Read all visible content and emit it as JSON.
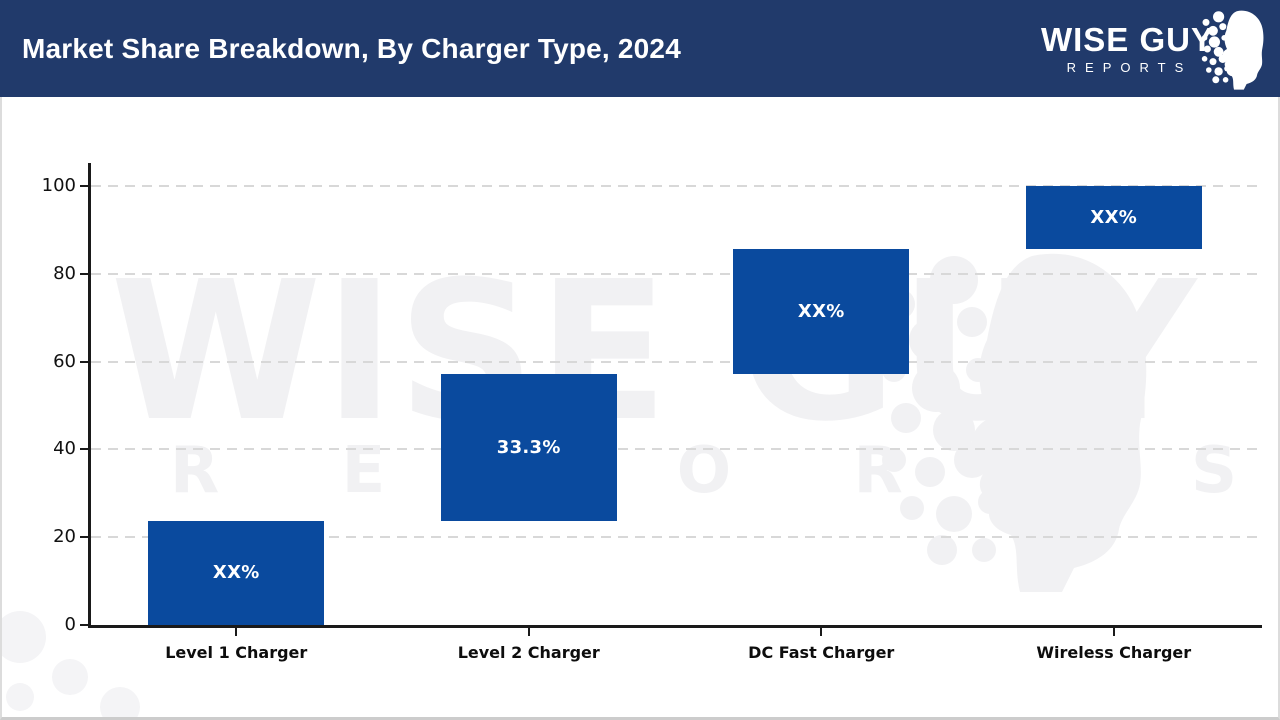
{
  "header": {
    "title": "Market Share Breakdown, By Charger Type, 2024",
    "logo": {
      "line1": "WISE GUY",
      "line2": "REPORTS"
    }
  },
  "watermark": {
    "line1": "WISE GUY",
    "line2": "R E P O R T S"
  },
  "chart_data": {
    "type": "bar",
    "subtype": "waterfall",
    "title": "Market Share Breakdown, By Charger Type, 2024",
    "categories": [
      "Level 1 Charger",
      "Level 2 Charger",
      "DC Fast Charger",
      "Wireless Charger"
    ],
    "segments": [
      {
        "category": "Level 1 Charger",
        "start": 0,
        "end": 23.8,
        "value": 23.8,
        "displayed_label": "XX%"
      },
      {
        "category": "Level 2 Charger",
        "start": 23.8,
        "end": 57.1,
        "value": 33.3,
        "displayed_label": "33.3%"
      },
      {
        "category": "DC Fast Charger",
        "start": 57.1,
        "end": 85.7,
        "value": 28.6,
        "displayed_label": "XX%"
      },
      {
        "category": "Wireless Charger",
        "start": 85.7,
        "end": 100,
        "value": 14.3,
        "displayed_label": "XX%"
      }
    ],
    "xlabel": "",
    "ylabel": "",
    "ylim": [
      0,
      100
    ],
    "yticks": [
      0,
      20,
      40,
      60,
      80,
      100
    ],
    "grid": "horizontal-dashed",
    "legend": "none",
    "bar_color": "#0A4A9E"
  },
  "colors": {
    "header_bg": "#213A6B",
    "bar": "#0A4A9E",
    "grid": "#D8D8D8",
    "axis": "#1A1A1A",
    "watermark": "#F1F1F3"
  }
}
